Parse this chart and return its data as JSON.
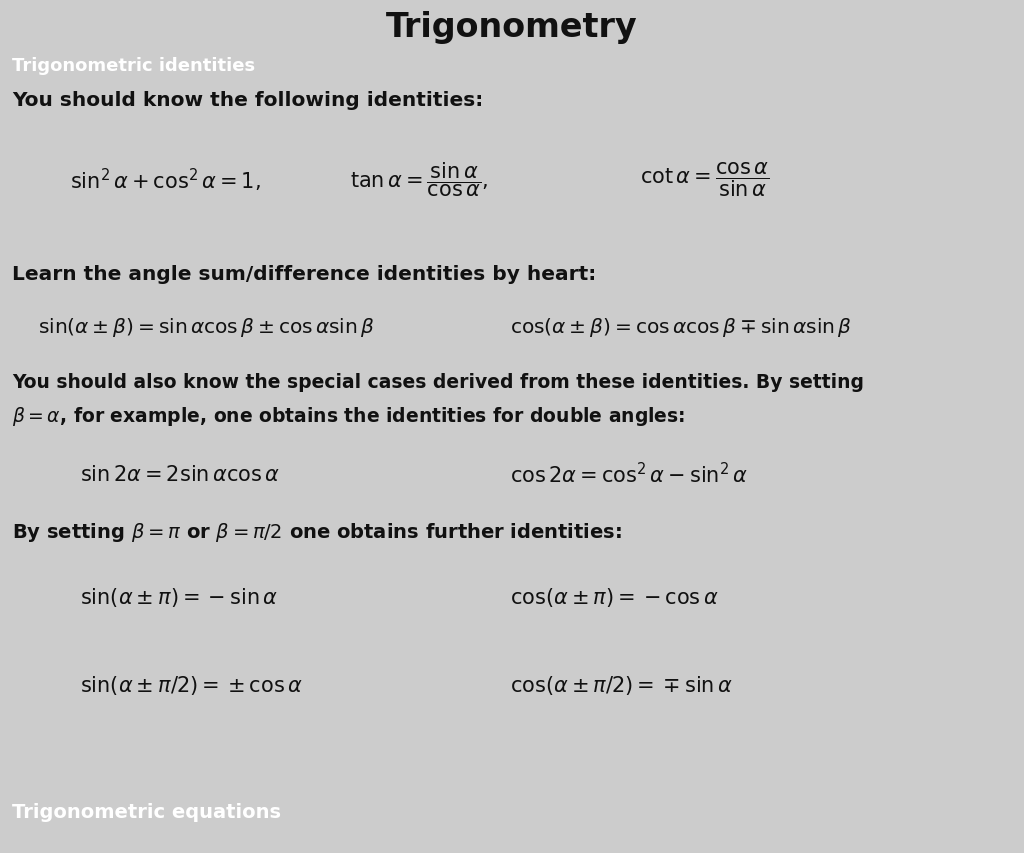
{
  "title": "Trigonometry",
  "section_header": "Trigonometric identities",
  "bottom_header": "Trigonometric equations",
  "bg_light": "#cccccc",
  "bg_lighter": "#d8d8d8",
  "header_bg": "#1e1e1e",
  "bottom_header_bg": "#1a2eaa",
  "title_color": "#111111",
  "header_text_color": "#ffffff",
  "body_text_color": "#111111",
  "formula_bg": "#c8c8ce",
  "text_bg": "#bababe"
}
